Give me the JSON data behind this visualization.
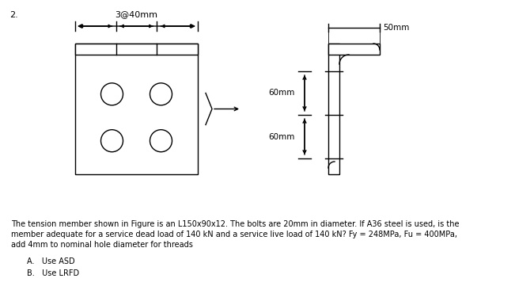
{
  "bg_color": "#ffffff",
  "problem_number": "2.",
  "label_3at40mm": "3@40mm",
  "label_50mm": "50mm",
  "label_60mm_top": "60mm",
  "label_60mm_bot": "60mm",
  "text_line1": "The tension member shown in Figure is an L150x90x12. The bolts are 20mm in diameter. If A36 steel is used, is the",
  "text_line2": "member adequate for a service dead load of 140 kN and a service live load of 140 kN? Fy = 248MPa, Fu = 400MPa,",
  "text_line3": "add 4mm to nominal hole diameter for threads",
  "item_A": "A.   Use ASD",
  "item_B": "B.   Use LRFD",
  "line_color": "#000000",
  "bg_color2": "#ffffff"
}
